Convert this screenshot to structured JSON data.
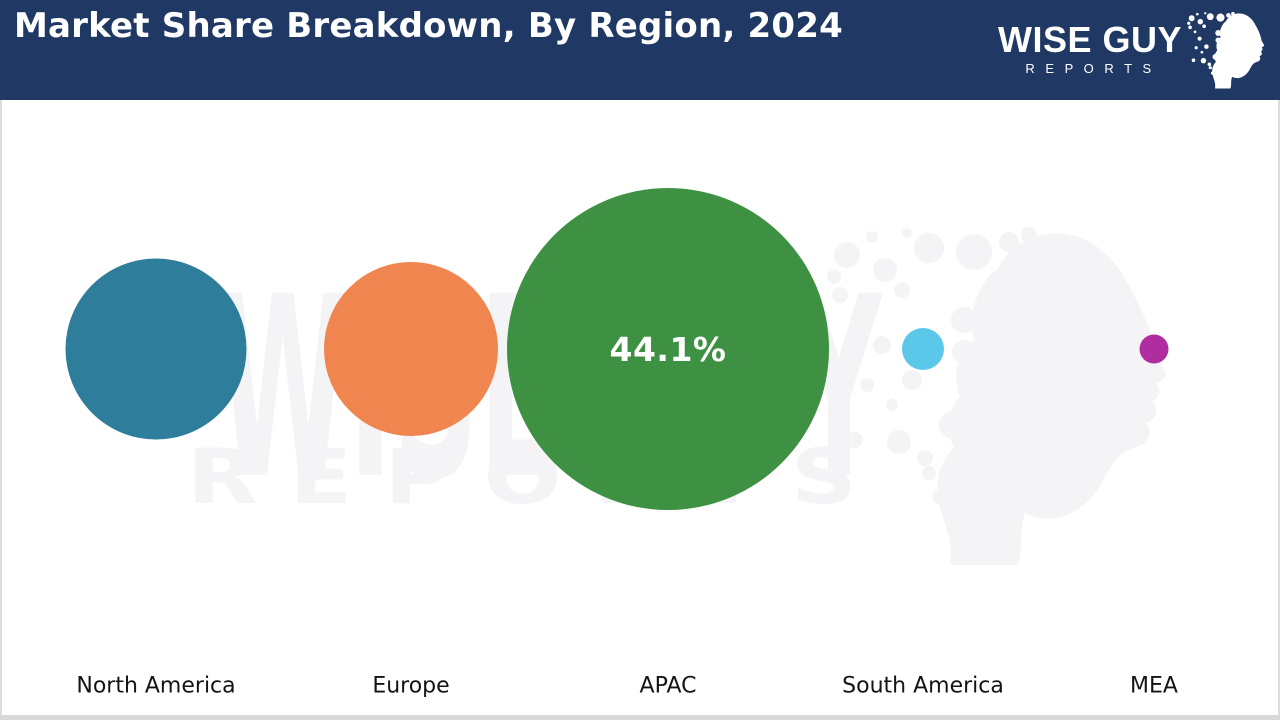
{
  "header": {
    "title": "Market Share Breakdown, By Region, 2024",
    "bg_color": "#1F3864",
    "logo_line1": "WISE GUY",
    "logo_line2": "R E P O R T S"
  },
  "watermark": {
    "line1": "WISE GUY",
    "line2": "R E P O R T S"
  },
  "chart_data": {
    "type": "bubble",
    "title": "Market Share Breakdown, By Region, 2024",
    "categories": [
      "North America",
      "Europe",
      "APAC",
      "South America",
      "MEA"
    ],
    "bubbles": [
      {
        "label": "North America",
        "color": "#2E7D9B",
        "radius_px": 90.5,
        "value_label": ""
      },
      {
        "label": "Europe",
        "color": "#F0854F",
        "radius_px": 87,
        "value_label": ""
      },
      {
        "label": "APAC",
        "color": "#3E9142",
        "radius_px": 161,
        "value_label": "44.1%"
      },
      {
        "label": "South America",
        "color": "#5BC8EA",
        "radius_px": 21,
        "value_label": ""
      },
      {
        "label": "MEA",
        "color": "#B02DA0",
        "radius_px": 14.5,
        "value_label": ""
      }
    ],
    "shown_value": {
      "category": "APAC",
      "value_pct": 44.1
    },
    "value_label_color": "#FFFFFF",
    "category_label_position": "bottom",
    "grid": "off"
  }
}
